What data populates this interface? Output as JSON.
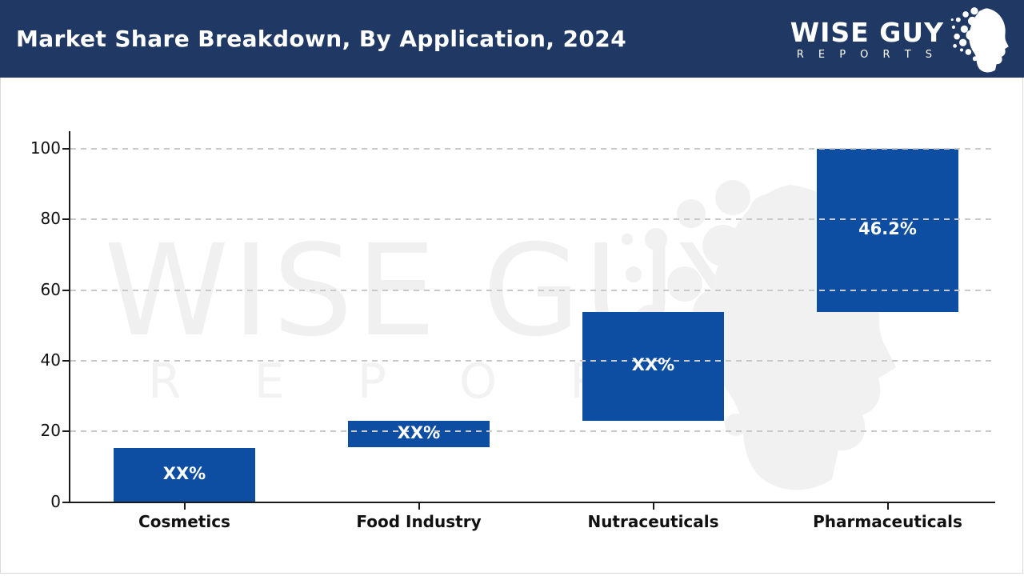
{
  "header": {
    "title": "Market Share Breakdown, By Application, 2024",
    "logo": {
      "line1": "WISE GUY",
      "line2": "R E P O R T S"
    }
  },
  "watermark": {
    "line1": "WISE GUY",
    "line2": "R E P O R T S"
  },
  "colors": {
    "header_bg": "#1f3864",
    "bar": "#0d4da2",
    "bar_label": "#ffffff",
    "grid": "#c9c9c9",
    "axis": "#1a1a1a",
    "watermark": "#f0f0f0"
  },
  "chart_data": {
    "type": "bar",
    "subtype": "waterfall-floating-segments",
    "title": "Market Share Breakdown, By Application, 2024",
    "categories": [
      "Cosmetics",
      "Food Industry",
      "Nutraceuticals",
      "Pharmaceuticals"
    ],
    "segments": [
      {
        "category": "Cosmetics",
        "start": 0,
        "end": 15.4,
        "value": 15.4,
        "label": "XX%"
      },
      {
        "category": "Food Industry",
        "start": 15.4,
        "end": 23.1,
        "value": 7.7,
        "label": "XX%"
      },
      {
        "category": "Nutraceuticals",
        "start": 23.1,
        "end": 53.8,
        "value": 30.7,
        "label": "XX%"
      },
      {
        "category": "Pharmaceuticals",
        "start": 53.8,
        "end": 100,
        "value": 46.2,
        "label": "46.2%"
      }
    ],
    "xlabel": "",
    "ylabel": "",
    "ylim": [
      0,
      105
    ],
    "yticks": [
      0,
      20,
      40,
      60,
      80,
      100
    ],
    "grid": "horizontal dashed, drawn over bars",
    "legend": "none"
  }
}
